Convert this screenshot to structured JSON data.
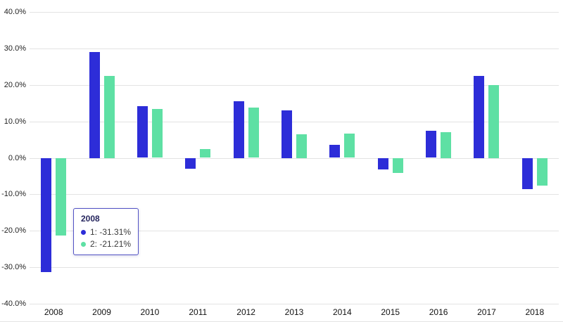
{
  "chart_data": {
    "type": "bar",
    "title": "",
    "xlabel": "",
    "ylabel": "",
    "categories": [
      "2008",
      "2009",
      "2010",
      "2011",
      "2012",
      "2013",
      "2014",
      "2015",
      "2016",
      "2017",
      "2018"
    ],
    "series": [
      {
        "name": "1",
        "color": "#2d2dd8",
        "values": [
          -31.31,
          29.0,
          14.1,
          -3.0,
          15.5,
          13.0,
          3.6,
          -3.2,
          7.4,
          22.5,
          -8.6
        ]
      },
      {
        "name": "2",
        "color": "#5ee0a4",
        "values": [
          -21.21,
          22.5,
          13.4,
          2.4,
          13.8,
          6.5,
          6.7,
          -4.1,
          7.0,
          20.0,
          -7.6
        ]
      }
    ],
    "ylim": [
      -40,
      40
    ],
    "ytick_step": 10,
    "ytick_labels": [
      "40.0%",
      "30.0%",
      "20.0%",
      "10.0%",
      "0.0%",
      "-10.0%",
      "-20.0%",
      "-30.0%",
      "-40.0%"
    ],
    "grid": true,
    "legend": false
  },
  "tooltip": {
    "title": "2008",
    "items": [
      {
        "label": "1: -31.31%",
        "color": "#2d2dd8"
      },
      {
        "label": "2: -21.21%",
        "color": "#5ee0a4"
      }
    ]
  }
}
